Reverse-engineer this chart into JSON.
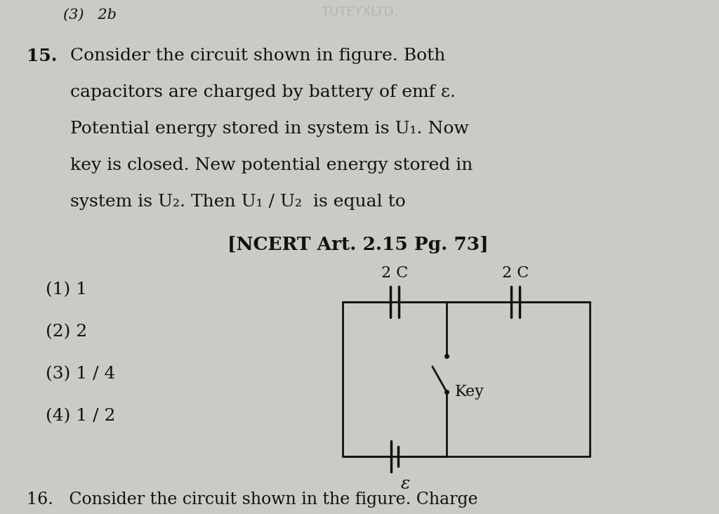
{
  "background_color": "#cccac4",
  "page_color": "#e0ddd6",
  "header_text": "(3)   2b",
  "watermark": "TUTEYXLTD.",
  "title_number": "15.",
  "question_text_lines": [
    "Consider the circuit shown in figure. Both",
    "capacitors are charged by battery of emf ε.",
    "Potential energy stored in system is U₁. Now",
    "key is closed. New potential energy stored in",
    "system is U₂. Then U₁ / U₂  is equal to"
  ],
  "ref_text": "[NCERT Art. 2.15 Pg. 73]",
  "options": [
    "(1) 1",
    "(2) 2",
    "(3) 1 / 4",
    "(4) 1 / 2"
  ],
  "next_q": "16.   Consider the circuit shown in the figure. Charge",
  "circuit_labels": [
    "2 C",
    "2 C"
  ],
  "circuit_key_label": "Key",
  "circuit_emf_label": "ε",
  "text_color": "#111111",
  "line_color": "#111111",
  "font_size_header": 15,
  "font_size_question": 18,
  "font_size_options": 18,
  "font_size_ref": 19,
  "font_size_circuit": 16,
  "font_size_next": 17
}
